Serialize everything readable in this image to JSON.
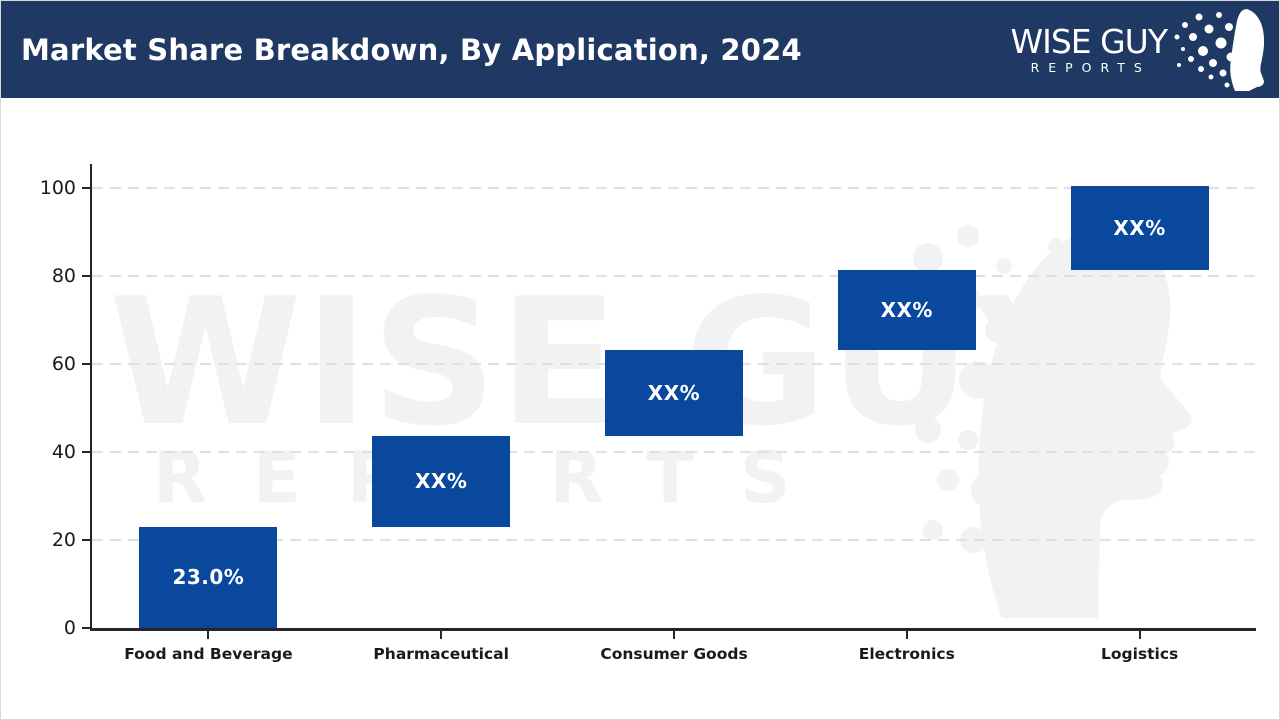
{
  "header": {
    "title": "Market Share Breakdown, By Application, 2024",
    "logo": {
      "line1": "WISE GUY",
      "line2": "REPORTS"
    }
  },
  "watermark": {
    "line1": "WISE GUY",
    "line2": "REPORTS"
  },
  "colors": {
    "header_bg": "#1f3864",
    "bar": "#0a489e",
    "bar_label": "#ffffff",
    "axis": "#262626",
    "tick_label": "#1a1a1a",
    "gridline": "#e0e0e0",
    "watermark": "#f2f2f2",
    "page_border": "#d9d9d9"
  },
  "chart_data": {
    "type": "bar",
    "subtype": "waterfall",
    "title": "Market Share Breakdown, By Application, 2024",
    "categories": [
      "Food and Beverage",
      "Pharmaceutical",
      "Consumer Goods",
      "Electronics",
      "Logistics"
    ],
    "segments": [
      {
        "category": "Food and Beverage",
        "start": 0,
        "end": 23.0,
        "label": "23.0%"
      },
      {
        "category": "Pharmaceutical",
        "start": 23.0,
        "end": 43.7,
        "label": "XX%"
      },
      {
        "category": "Consumer Goods",
        "start": 43.7,
        "end": 63.2,
        "label": "XX%"
      },
      {
        "category": "Electronics",
        "start": 63.2,
        "end": 81.4,
        "label": "XX%"
      },
      {
        "category": "Logistics",
        "start": 81.4,
        "end": 100.6,
        "label": "XX%"
      }
    ],
    "xlabel": "",
    "ylabel": "",
    "yticks": [
      0,
      20,
      40,
      60,
      80,
      100
    ],
    "ylim": [
      0,
      105.5
    ],
    "grid": "horizontal-dashed",
    "legend": "none",
    "bar_width_frac": 0.593
  }
}
